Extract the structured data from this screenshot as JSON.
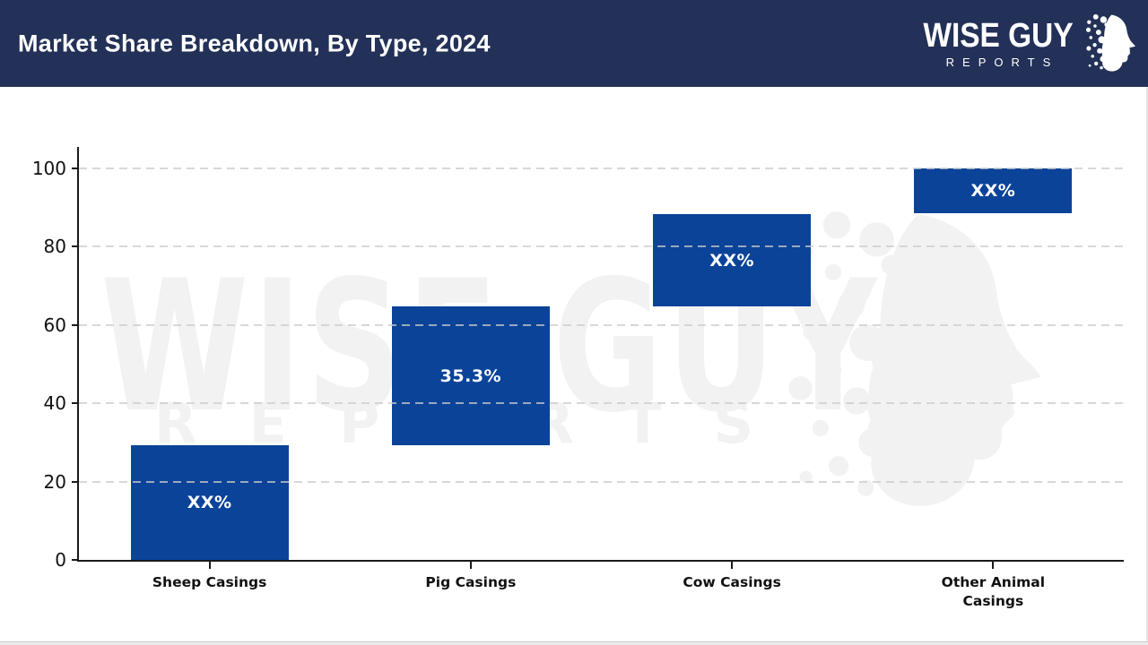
{
  "header": {
    "title": "Market Share Breakdown, By Type, 2024",
    "bg_color": "#233158",
    "logo": {
      "wordmark": "WISE GUY",
      "subtext": "REPORTS"
    }
  },
  "watermark": {
    "wordmark": "WISE GUY",
    "subtext": "REPORTS"
  },
  "chart_data": {
    "type": "bar",
    "subtype": "waterfall",
    "title": "Market Share Breakdown, By Type, 2024",
    "categories": [
      "Sheep Casings",
      "Pig Casings",
      "Cow Casings",
      "Other Animal Casings"
    ],
    "bars": [
      {
        "category": "Sheep Casings",
        "start": 0,
        "end": 29.3,
        "label": "XX%"
      },
      {
        "category": "Pig Casings",
        "start": 29.3,
        "end": 64.6,
        "label": "35.3%"
      },
      {
        "category": "Cow Casings",
        "start": 64.7,
        "end": 88.2,
        "label": "XX%"
      },
      {
        "category": "Other Animal Casings",
        "start": 88.5,
        "end": 100,
        "label": "XX%"
      }
    ],
    "xlabel": "",
    "ylabel": "",
    "yticks": [
      0,
      20,
      40,
      60,
      80,
      100
    ],
    "ylim": [
      0,
      105
    ],
    "grid": "horizontal-dashed",
    "legend": null,
    "bar_color": "#0b4399",
    "axis_color": "#1a1a1a",
    "gridline_color": "#cbcbcb",
    "tick_label_color": "#111111"
  }
}
